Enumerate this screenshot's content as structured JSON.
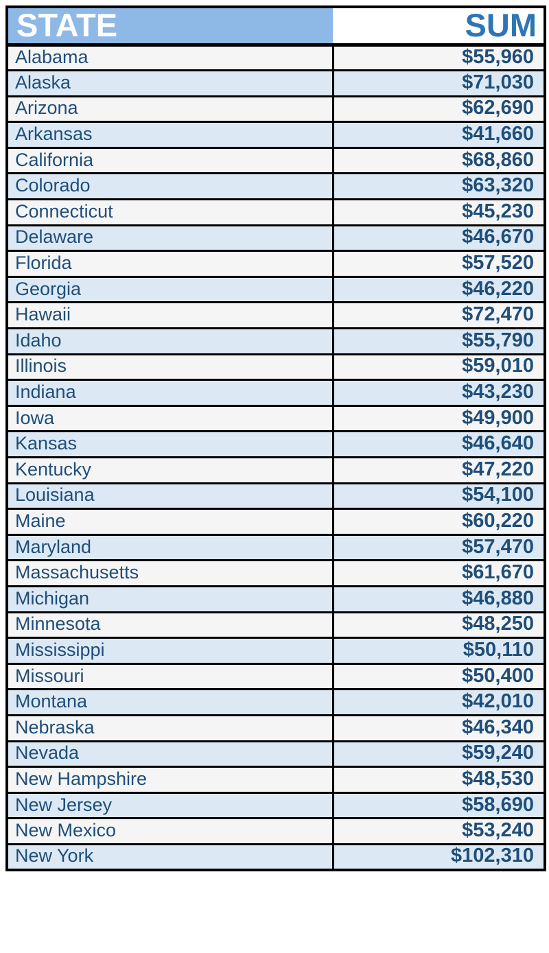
{
  "table": {
    "columns": [
      {
        "label": "STATE"
      },
      {
        "label": "SUM"
      }
    ],
    "rows": [
      {
        "state": "Alabama",
        "sum": "$55,960"
      },
      {
        "state": "Alaska",
        "sum": "$71,030"
      },
      {
        "state": "Arizona",
        "sum": "$62,690"
      },
      {
        "state": "Arkansas",
        "sum": "$41,660"
      },
      {
        "state": "California",
        "sum": "$68,860"
      },
      {
        "state": "Colorado",
        "sum": "$63,320"
      },
      {
        "state": "Connecticut",
        "sum": "$45,230"
      },
      {
        "state": "Delaware",
        "sum": "$46,670"
      },
      {
        "state": "Florida",
        "sum": "$57,520"
      },
      {
        "state": "Georgia",
        "sum": "$46,220"
      },
      {
        "state": "Hawaii",
        "sum": "$72,470"
      },
      {
        "state": "Idaho",
        "sum": "$55,790"
      },
      {
        "state": "Illinois",
        "sum": "$59,010"
      },
      {
        "state": "Indiana",
        "sum": "$43,230"
      },
      {
        "state": "Iowa",
        "sum": "$49,900"
      },
      {
        "state": "Kansas",
        "sum": "$46,640"
      },
      {
        "state": "Kentucky",
        "sum": "$47,220"
      },
      {
        "state": "Louisiana",
        "sum": "$54,100"
      },
      {
        "state": "Maine",
        "sum": "$60,220"
      },
      {
        "state": "Maryland",
        "sum": "$57,470"
      },
      {
        "state": "Massachusetts",
        "sum": "$61,670"
      },
      {
        "state": "Michigan",
        "sum": "$46,880"
      },
      {
        "state": "Minnesota",
        "sum": "$48,250"
      },
      {
        "state": "Mississippi",
        "sum": "$50,110"
      },
      {
        "state": "Missouri",
        "sum": "$50,400"
      },
      {
        "state": "Montana",
        "sum": "$42,010"
      },
      {
        "state": "Nebraska",
        "sum": "$46,340"
      },
      {
        "state": "Nevada",
        "sum": "$59,240"
      },
      {
        "state": "New Hampshire",
        "sum": "$48,530"
      },
      {
        "state": "New Jersey",
        "sum": "$58,690"
      },
      {
        "state": "New Mexico",
        "sum": "$53,240"
      },
      {
        "state": "New York",
        "sum": "$102,310"
      }
    ]
  },
  "chart_data": {
    "type": "table",
    "title": "",
    "columns": [
      "STATE",
      "SUM"
    ],
    "categories": [
      "Alabama",
      "Alaska",
      "Arizona",
      "Arkansas",
      "California",
      "Colorado",
      "Connecticut",
      "Delaware",
      "Florida",
      "Georgia",
      "Hawaii",
      "Idaho",
      "Illinois",
      "Indiana",
      "Iowa",
      "Kansas",
      "Kentucky",
      "Louisiana",
      "Maine",
      "Maryland",
      "Massachusetts",
      "Michigan",
      "Minnesota",
      "Mississippi",
      "Missouri",
      "Montana",
      "Nebraska",
      "Nevada",
      "New Hampshire",
      "New Jersey",
      "New Mexico",
      "New York"
    ],
    "values": [
      55960,
      71030,
      62690,
      41660,
      68860,
      63320,
      45230,
      46670,
      57520,
      46220,
      72470,
      55790,
      59010,
      43230,
      49900,
      46640,
      47220,
      54100,
      60220,
      57470,
      61670,
      46880,
      48250,
      50110,
      50400,
      42010,
      46340,
      59240,
      48530,
      58690,
      53240,
      102310
    ],
    "value_format": "$#,##0"
  },
  "colors": {
    "header_bg": "#8EB8E5",
    "header_state_text": "#FFFFFF",
    "header_sum_text": "#2E75B6",
    "row_alt_gray": "#F5F5F6",
    "row_alt_blue": "#DCE9F5",
    "state_text": "#1F4E79",
    "sum_text": "#1F4E79",
    "border": "#000000"
  }
}
